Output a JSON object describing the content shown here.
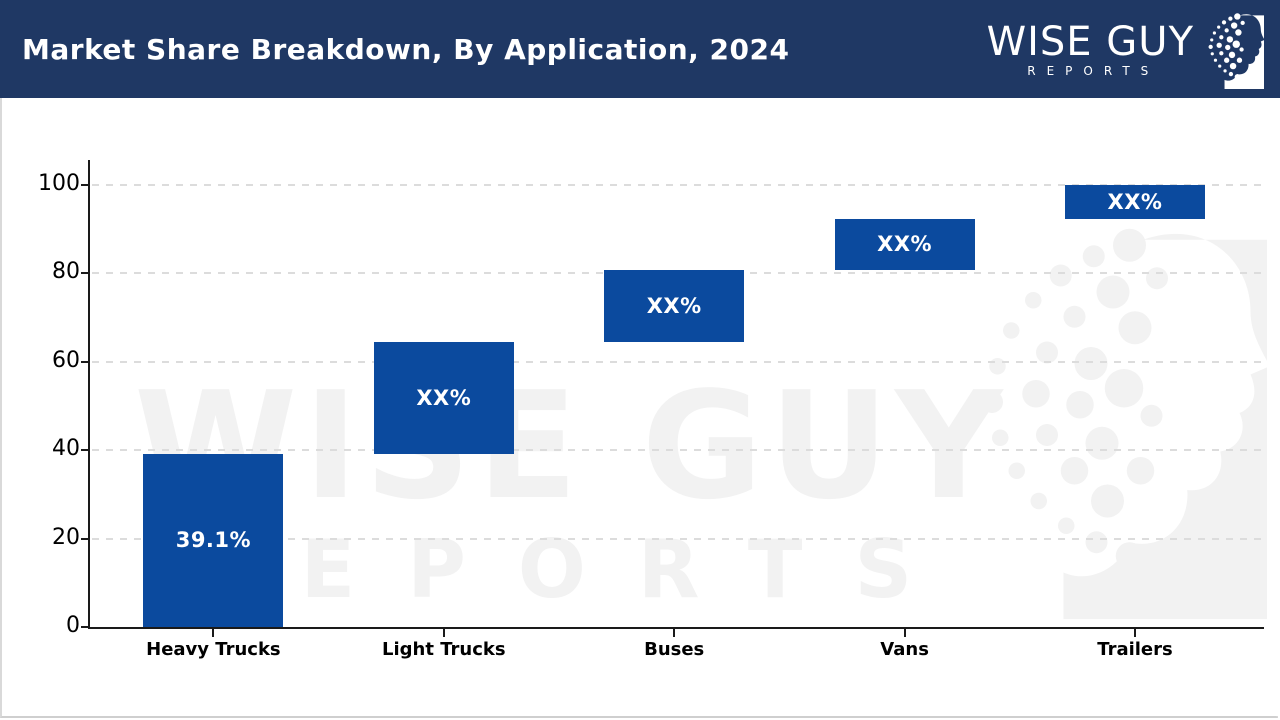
{
  "header": {
    "title": "Market Share Breakdown, By Application, 2024",
    "logo": {
      "line1": "WISE GUY",
      "line2": "REPORTS"
    }
  },
  "colors": {
    "header_bg": "#1f3864",
    "bar_blue": "#0b4a9e",
    "gridline": "#dcdcdc",
    "axis": "#1a1a1a",
    "watermark": "#f2f2f2",
    "title_text": "#ffffff",
    "bar_label_text": "#ffffff"
  },
  "watermark": {
    "line1": "WISE GUY",
    "line2": "REPORTS"
  },
  "chart_data": {
    "type": "bar",
    "subtype": "waterfall",
    "title": "Market Share Breakdown, By Application, 2024",
    "categories": [
      "Heavy Trucks",
      "Light Trucks",
      "Buses",
      "Vans",
      "Trailers"
    ],
    "segments": [
      {
        "category": "Heavy Trucks",
        "start": 0,
        "end": 39.1,
        "label": "39.1%"
      },
      {
        "category": "Light Trucks",
        "start": 39.1,
        "end": 64.4,
        "label": "XX%"
      },
      {
        "category": "Buses",
        "start": 64.4,
        "end": 80.7,
        "label": "XX%"
      },
      {
        "category": "Vans",
        "start": 80.7,
        "end": 92.2,
        "label": "XX%"
      },
      {
        "category": "Trailers",
        "start": 92.2,
        "end": 100,
        "label": "XX%"
      }
    ],
    "xlabel": "",
    "ylabel": "",
    "ylim": [
      0,
      100
    ],
    "yticks": [
      0,
      20,
      40,
      60,
      80,
      100
    ],
    "grid": "horizontal-dashed",
    "legend": "none",
    "bar_color": "#0b4a9e"
  }
}
